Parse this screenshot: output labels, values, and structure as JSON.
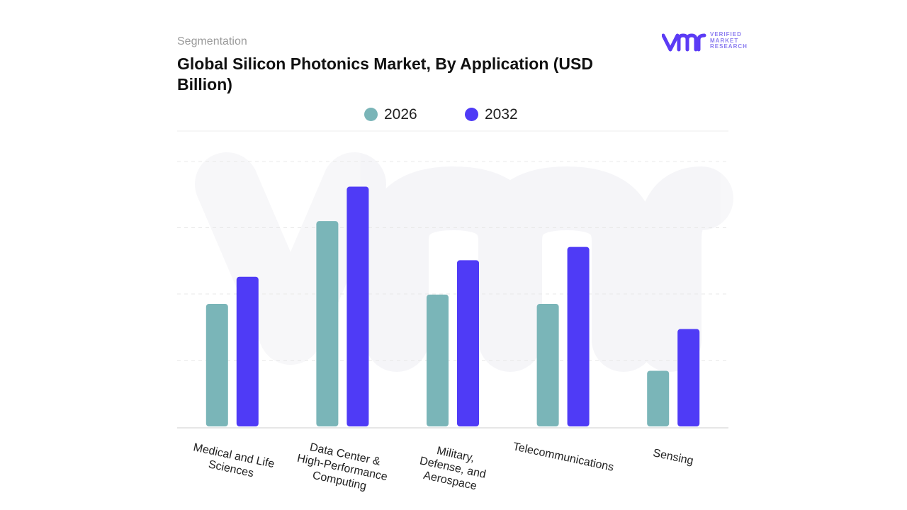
{
  "header": {
    "segment_label": "Segmentation",
    "title": "Global Silicon Photonics Market, By Application (USD Billion)"
  },
  "logo": {
    "text_line1": "VERIFIED",
    "text_line2": "MARKET",
    "text_line3": "RESEARCH",
    "accent_color": "#5b3bf5"
  },
  "chart_data": {
    "type": "bar",
    "title": "Global Silicon Photonics Market, By Application (USD Billion)",
    "categories": [
      "Medical and Life Sciences",
      "Data Center & High-Performance Computing",
      "Military, Defense, and Aerospace",
      "Telecommunications",
      "Sensing"
    ],
    "category_labels": [
      "Medical and Life\nSciences",
      "Data Center &\nHigh-Performance\nComputing",
      "Military,\nDefense, and\nAerospace",
      "Telecommunications",
      "Sensing"
    ],
    "series": [
      {
        "name": "2026",
        "color": "#7ab5b8",
        "values": [
          1.85,
          3.1,
          1.99,
          1.85,
          0.84
        ]
      },
      {
        "name": "2032",
        "color": "#4f3bf6",
        "values": [
          2.26,
          3.62,
          2.51,
          2.71,
          1.47
        ]
      }
    ],
    "ylim": [
      0,
      4
    ],
    "grid": true,
    "y_tick_labels_shown": false,
    "legend_position": "top-center",
    "xlabel": "",
    "ylabel": ""
  }
}
